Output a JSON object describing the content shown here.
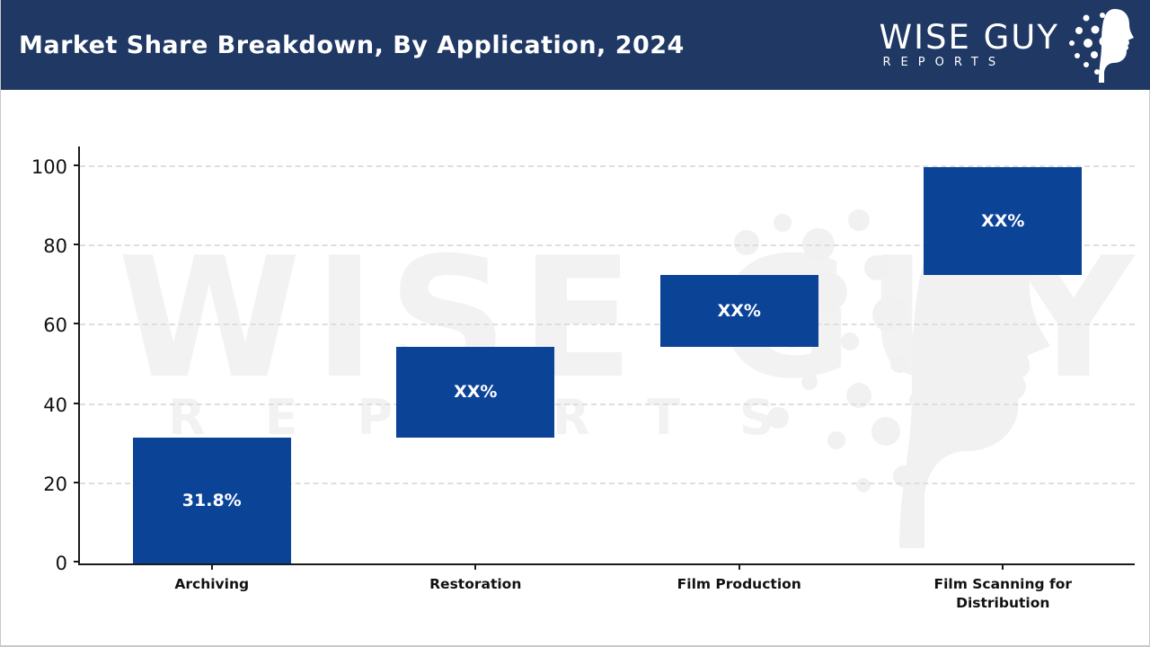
{
  "header": {
    "title": "Market Share Breakdown, By Application, 2024",
    "bg_color": "#203864",
    "logo": {
      "line1": "WISE GUY",
      "line2": "REPORTS"
    }
  },
  "watermark": {
    "line1": "WISE GUY",
    "line2": "REPORTS"
  },
  "chart_data": {
    "type": "bar",
    "subtype": "waterfall",
    "title": "Market Share Breakdown, By Application, 2024",
    "xlabel": "",
    "ylabel": "",
    "ylim": [
      0,
      100
    ],
    "y_ticks": [
      0,
      20,
      40,
      60,
      80,
      100
    ],
    "grid": "dashed-horizontal",
    "bar_color": "#0b4397",
    "label_color": "#ffffff",
    "categories": [
      "Archiving",
      "Restoration",
      "Film Production",
      "Film Scanning for\nDistribution"
    ],
    "bars": [
      {
        "category": "Archiving",
        "start": 0,
        "end": 31.8,
        "label": "31.8%"
      },
      {
        "category": "Restoration",
        "start": 31.8,
        "end": 54.6,
        "label": "XX%"
      },
      {
        "category": "Film Production",
        "start": 54.6,
        "end": 72.8,
        "label": "XX%"
      },
      {
        "category": "Film Scanning for\nDistribution",
        "start": 72.8,
        "end": 100,
        "label": "XX%"
      }
    ]
  }
}
